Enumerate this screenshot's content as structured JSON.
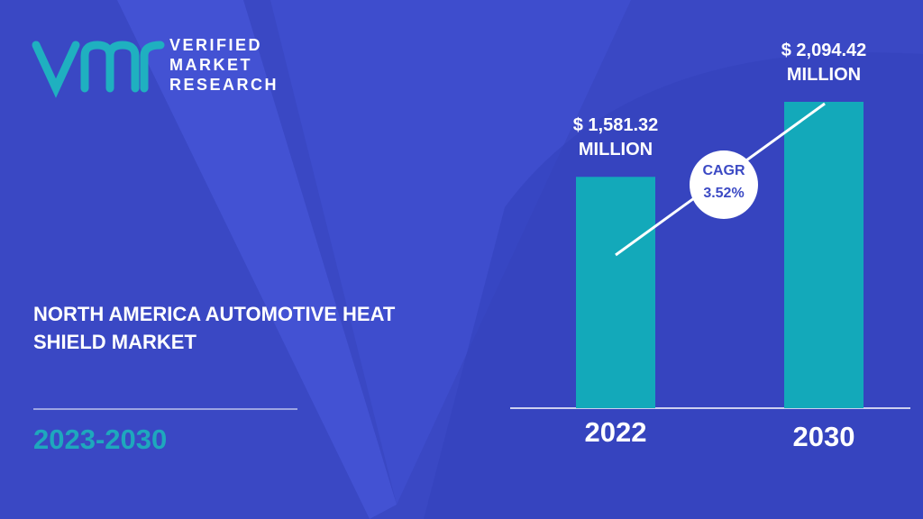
{
  "brand": {
    "line1": "VERIFIED",
    "line2": "MARKET",
    "line3": "RESEARCH"
  },
  "chart_data": {
    "type": "bar",
    "title": "NORTH AMERICA AUTOMOTIVE HEAT SHIELD MARKET",
    "period": "2023-2030",
    "categories": [
      "2022",
      "2030"
    ],
    "values": [
      1581.32,
      2094.42
    ],
    "value_labels": [
      "$ 1,581.32 MILLION",
      "$ 2,094.42 MILLION"
    ],
    "color": "#13a9ba",
    "annotation": {
      "label": "CAGR",
      "value": "3.52%"
    }
  }
}
